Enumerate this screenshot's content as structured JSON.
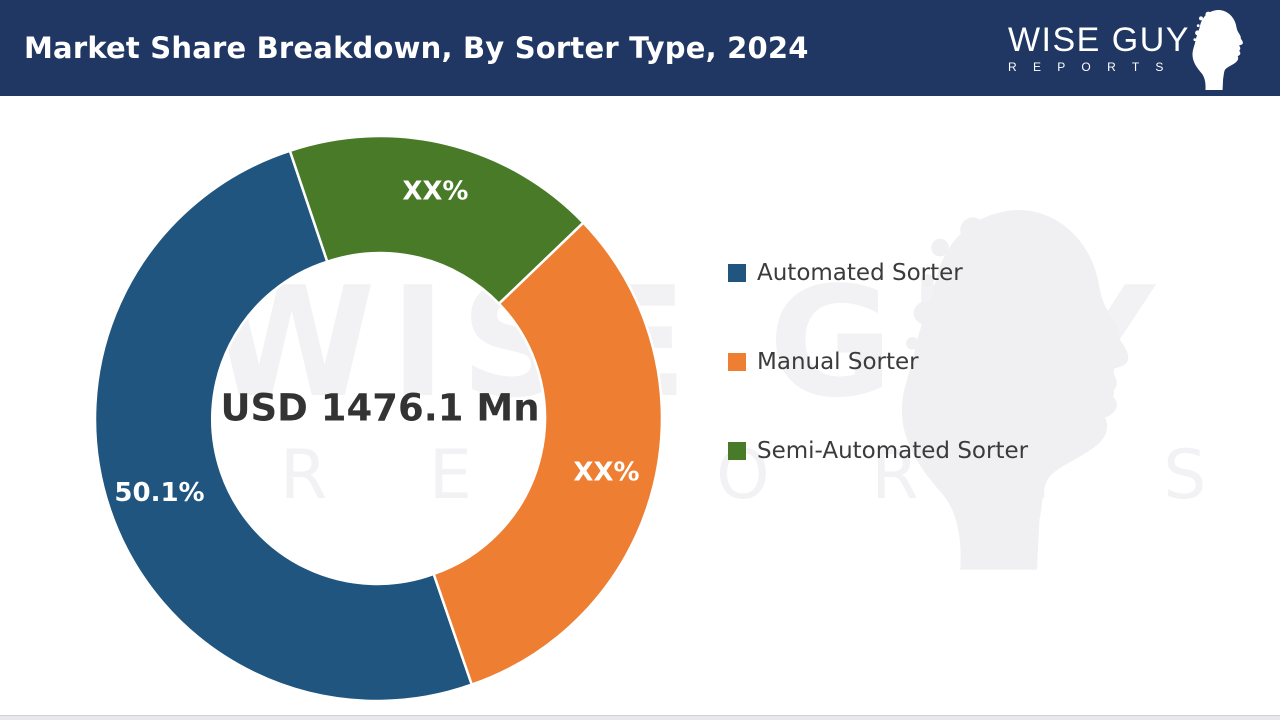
{
  "header": {
    "title": "Market Share Breakdown, By Sorter Type, 2024",
    "background": "#203763",
    "logo": {
      "line1": "WISE GUY",
      "line2": "R E P O R T S"
    }
  },
  "watermark": {
    "line1": "WISE GUY",
    "line2": "R E P O R T S"
  },
  "chart_data": {
    "type": "pie",
    "subtype": "donut",
    "title": "Market Share Breakdown, By Sorter Type, 2024",
    "center_label": "USD 1476.1 Mn",
    "start_angle_deg": 161,
    "clockwise": true,
    "inner_radius_ratio": 0.585,
    "segments": [
      {
        "name": "Automated Sorter",
        "value_pct": 50.1,
        "label": "50.1%",
        "color": "#1F557E"
      },
      {
        "name": "Semi-Automated Sorter",
        "value_pct": 18.0,
        "label": "XX%",
        "color": "#487A28"
      },
      {
        "name": "Manual Sorter",
        "value_pct": 31.9,
        "label": "XX%",
        "color": "#EE7E32"
      }
    ],
    "legend": [
      {
        "label": "Automated Sorter",
        "color": "#1F557E"
      },
      {
        "label": "Manual Sorter",
        "color": "#EE7E32"
      },
      {
        "label": "Semi-Automated Sorter",
        "color": "#487A28"
      }
    ],
    "legend_position": "right",
    "label_color": "#ffffff",
    "center_label_color": "#333333"
  },
  "colors": {
    "header_bg": "#203763",
    "watermark": "#f2f2f5",
    "legend_text": "#3b3b3b",
    "bottom_bar": "#e8e8ea"
  }
}
